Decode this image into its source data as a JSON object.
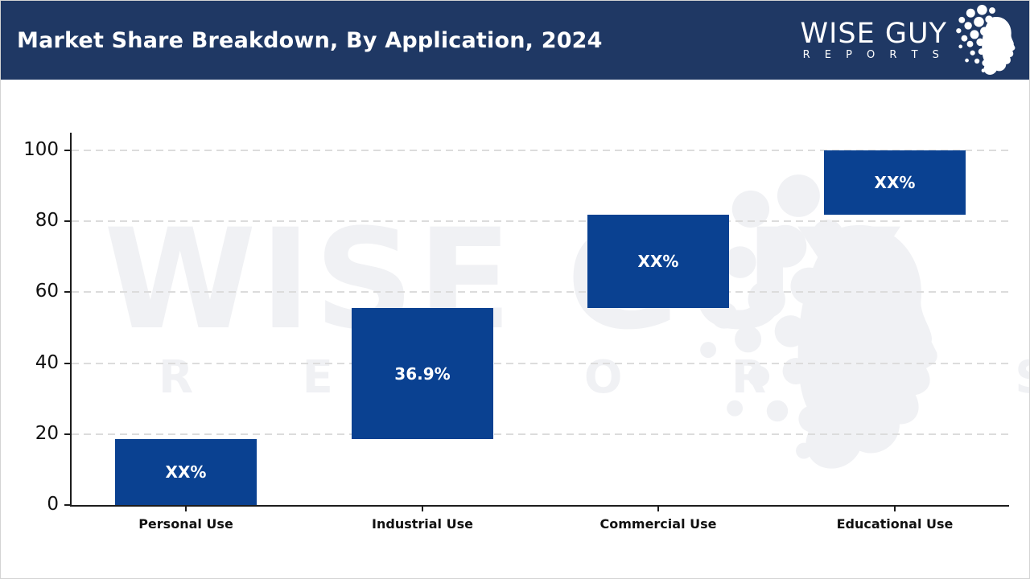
{
  "header": {
    "title": "Market Share Breakdown, By Application, 2024",
    "bg_color": "#1f3864",
    "logo": {
      "line1": "WISE GUY",
      "line2": "R E P O R T S",
      "icon": "head-profile-dots-icon"
    }
  },
  "watermark": {
    "line1": "WISE GUY",
    "line2": "R E P O R T S",
    "icon": "head-profile-dots-icon",
    "color": "#f0f1f4"
  },
  "chart_data": {
    "type": "bar",
    "subtype": "floating-segment-percentage",
    "title": "Market Share Breakdown, By Application, 2024",
    "categories": [
      "Personal Use",
      "Industrial Use",
      "Commercial Use",
      "Educational Use"
    ],
    "bars": [
      {
        "category": "Personal Use",
        "label": "XX%",
        "start": 0,
        "end": 18.6,
        "height": 18.6
      },
      {
        "category": "Industrial Use",
        "label": "36.9%",
        "start": 18.6,
        "end": 55.5,
        "height": 36.9
      },
      {
        "category": "Commercial Use",
        "label": "XX%",
        "start": 55.5,
        "end": 81.9,
        "height": 26.4
      },
      {
        "category": "Educational Use",
        "label": "XX%",
        "start": 81.9,
        "end": 100,
        "height": 18.1
      }
    ],
    "xlabel": "",
    "ylabel": "",
    "y_ticks": [
      0,
      20,
      40,
      60,
      80,
      100
    ],
    "ylim": [
      0,
      105
    ],
    "grid": "horizontal-dashed",
    "legend": "none",
    "bar_color": "#0a4191",
    "value_label_color": "#ffffff",
    "axis_color": "#1c1c1c",
    "gridline_color": "#dcdcdc"
  }
}
